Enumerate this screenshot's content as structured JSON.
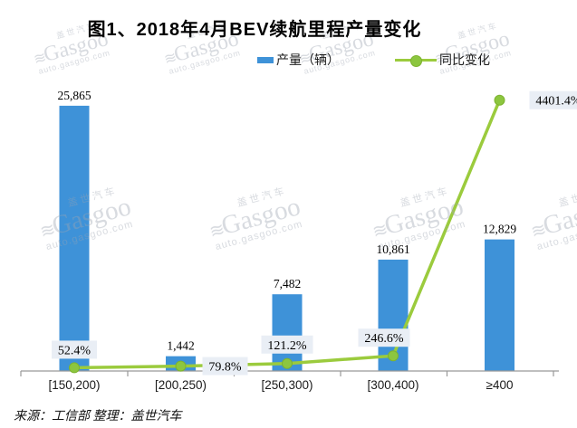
{
  "title": "图1、2018年4月BEV续航里程产量变化",
  "legend": {
    "bar_label": "产量（辆）",
    "line_label": "同比变化"
  },
  "source_note": "来源：工信部 整理：盖世汽车",
  "watermark": {
    "brand_cn": "盖世汽车",
    "brand_en": "Gasgoo",
    "site": "auto.gasgoo.com"
  },
  "colors": {
    "bar": "#3E92D8",
    "line": "#9BCB3D",
    "marker": "#8CC63F",
    "marker_stroke": "#7DB32F",
    "label_bg": "#E9EEF5",
    "axis": "#999999",
    "text": "#000000",
    "category_text": "#1a1a1a"
  },
  "chart_data": {
    "type": "bar",
    "title": "图1、2018年4月BEV续航里程产量变化",
    "categories": [
      "[150,200)",
      "[200,250)",
      "[250,300)",
      "[300,400)",
      "≥400"
    ],
    "series": [
      {
        "name": "产量（辆）",
        "type": "bar",
        "values": [
          25865,
          1442,
          7482,
          10861,
          12829
        ],
        "value_labels": [
          "25,865",
          "1,442",
          "7,482",
          "10,861",
          "12,829"
        ],
        "axis_max": 30000,
        "axis_min": 0
      },
      {
        "name": "同比变化",
        "type": "line",
        "values": [
          52.4,
          79.8,
          121.2,
          246.6,
          4401.4
        ],
        "value_labels": [
          "52.4%",
          "79.8%",
          "121.2%",
          "246.6%",
          "4401.4%"
        ],
        "axis_max": 5000,
        "axis_min": 0
      }
    ],
    "xlabel": "",
    "ylabel": "",
    "grid": false,
    "legend_position": "top"
  }
}
